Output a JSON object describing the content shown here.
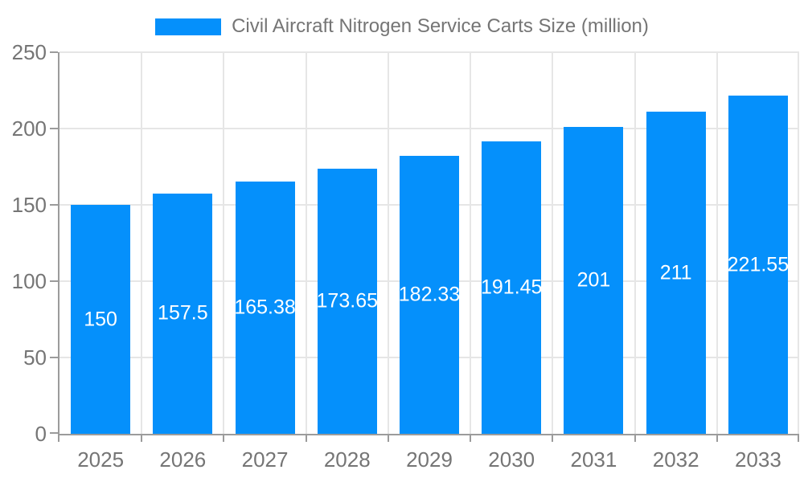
{
  "legend": {
    "label": "Civil Aircraft Nitrogen Service Carts Size (million)"
  },
  "chart_data": {
    "type": "bar",
    "title": "Civil Aircraft Nitrogen Service Carts Size (million)",
    "categories": [
      "2025",
      "2026",
      "2027",
      "2028",
      "2029",
      "2030",
      "2031",
      "2032",
      "2033"
    ],
    "values": [
      150,
      157.5,
      165.38,
      173.65,
      182.33,
      191.45,
      201,
      211,
      221.55
    ],
    "value_labels": [
      "150",
      "157.5",
      "165.38",
      "173.65",
      "182.33",
      "191.45",
      "201",
      "211",
      "221.55"
    ],
    "xlabel": "",
    "ylabel": "",
    "ylim": [
      0,
      250
    ],
    "yticks": [
      0,
      50,
      100,
      150,
      200,
      250
    ],
    "grid": true,
    "legend_position": "top-center",
    "colors": {
      "bar": "#0590FB",
      "axis": "#9B9B9B",
      "gridline": "#E6E6E6",
      "tick_label": "#757575",
      "value_label": "#FFFFFF",
      "legend_text": "#757575"
    }
  }
}
